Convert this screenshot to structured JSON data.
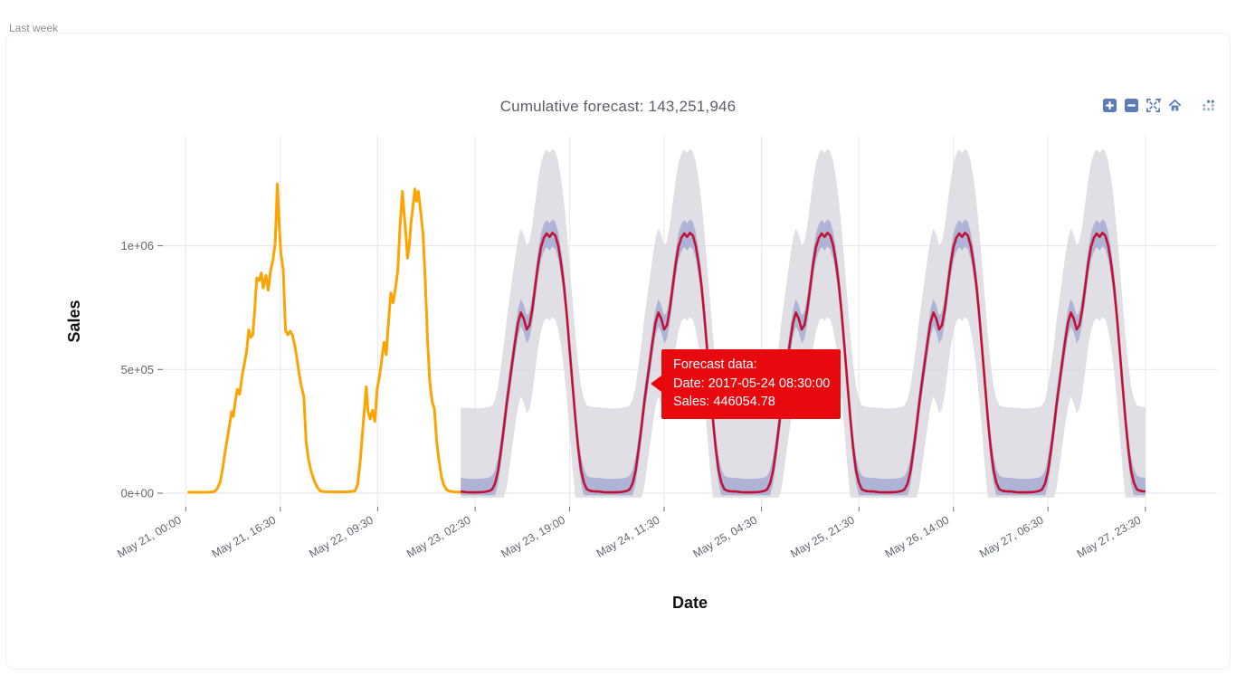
{
  "page": {
    "corner_label": "Last week"
  },
  "chart": {
    "title": "Cumulative forecast: 143,251,946",
    "modebar_icons": [
      "zoom-in",
      "zoom-out",
      "autoscale",
      "reset-home",
      "plotly-logo"
    ]
  },
  "chart_data": {
    "type": "line",
    "title": "Cumulative forecast: 143,251,946",
    "xlabel": "Date",
    "ylabel": "Sales",
    "xlim": [
      -4,
      180
    ],
    "ylim": [
      -55000,
      1445000
    ],
    "grid": true,
    "x_ticks": [
      {
        "label": "May 21, 00:00",
        "hour": 0
      },
      {
        "label": "May 21, 16:30",
        "hour": 16.5
      },
      {
        "label": "May 22, 09:30",
        "hour": 33.5
      },
      {
        "label": "May 23, 02:30",
        "hour": 50.5
      },
      {
        "label": "May 23, 19:00",
        "hour": 67
      },
      {
        "label": "May 24, 11:30",
        "hour": 83.5
      },
      {
        "label": "May 25, 04:30",
        "hour": 100.5
      },
      {
        "label": "May 25, 21:30",
        "hour": 117.5
      },
      {
        "label": "May 26, 14:00",
        "hour": 134
      },
      {
        "label": "May 27, 06:30",
        "hour": 150.5
      },
      {
        "label": "May 27, 23:30",
        "hour": 167.5
      }
    ],
    "y_ticks": [
      {
        "label": "0e+00",
        "value": 0
      },
      {
        "label": "5e+05",
        "value": 500000
      },
      {
        "label": "1e+06",
        "value": 1000000
      }
    ],
    "colors": {
      "observed": "#ffa300",
      "forecast": "#c11235",
      "band_wide": "#d9d9e1",
      "band_narrow": "#8f96c9",
      "grid": "#e9e9f0",
      "tick_text": "#5f6672",
      "axis_title": "#111111",
      "tooltip_bg": "#e8090f",
      "modebar": "#5d7cb6"
    },
    "series": [
      {
        "name": "observed",
        "color": "#ffa300",
        "points": [
          [
            0.5,
            4000
          ],
          [
            2,
            3500
          ],
          [
            4,
            4000
          ],
          [
            5,
            7000
          ],
          [
            5.5,
            18000
          ],
          [
            6,
            45000
          ],
          [
            6.5,
            110000
          ],
          [
            7,
            185000
          ],
          [
            7.5,
            255000
          ],
          [
            8,
            330000
          ],
          [
            8.3,
            310000
          ],
          [
            8.6,
            365000
          ],
          [
            9,
            420000
          ],
          [
            9.4,
            400000
          ],
          [
            9.8,
            470000
          ],
          [
            10.2,
            520000
          ],
          [
            10.6,
            570000
          ],
          [
            11,
            660000
          ],
          [
            11.3,
            630000
          ],
          [
            11.7,
            640000
          ],
          [
            12,
            730000
          ],
          [
            12.4,
            870000
          ],
          [
            12.8,
            860000
          ],
          [
            13.2,
            890000
          ],
          [
            13.5,
            830000
          ],
          [
            14,
            880000
          ],
          [
            14.4,
            820000
          ],
          [
            14.8,
            900000
          ],
          [
            15.2,
            940000
          ],
          [
            15.6,
            1010000
          ],
          [
            16,
            1250000
          ],
          [
            16.3,
            1090000
          ],
          [
            16.6,
            970000
          ],
          [
            17,
            905000
          ],
          [
            17.4,
            660000
          ],
          [
            17.8,
            640000
          ],
          [
            18.2,
            655000
          ],
          [
            18.6,
            640000
          ],
          [
            19,
            600000
          ],
          [
            19.4,
            545000
          ],
          [
            19.8,
            480000
          ],
          [
            20.2,
            430000
          ],
          [
            20.6,
            390000
          ],
          [
            21,
            210000
          ],
          [
            21.4,
            140000
          ],
          [
            21.8,
            95000
          ],
          [
            22.2,
            65000
          ],
          [
            22.6,
            40000
          ],
          [
            23,
            22000
          ],
          [
            23.5,
            9000
          ],
          [
            24,
            6000
          ],
          [
            26,
            5000
          ],
          [
            28,
            5500
          ],
          [
            29.5,
            8000
          ],
          [
            30,
            35000
          ],
          [
            30.5,
            140000
          ],
          [
            31,
            290000
          ],
          [
            31.5,
            430000
          ],
          [
            31.8,
            330000
          ],
          [
            32.2,
            300000
          ],
          [
            32.6,
            335000
          ],
          [
            33,
            290000
          ],
          [
            33.4,
            420000
          ],
          [
            33.8,
            470000
          ],
          [
            34.2,
            540000
          ],
          [
            34.6,
            610000
          ],
          [
            35,
            560000
          ],
          [
            35.4,
            700000
          ],
          [
            35.8,
            810000
          ],
          [
            36.2,
            770000
          ],
          [
            36.6,
            830000
          ],
          [
            37,
            900000
          ],
          [
            37.4,
            1080000
          ],
          [
            37.8,
            1220000
          ],
          [
            38.1,
            1130000
          ],
          [
            38.4,
            1050000
          ],
          [
            38.7,
            950000
          ],
          [
            39,
            1000000
          ],
          [
            39.3,
            1090000
          ],
          [
            39.6,
            1150000
          ],
          [
            40,
            1230000
          ],
          [
            40.3,
            1180000
          ],
          [
            40.6,
            1220000
          ],
          [
            41,
            1140000
          ],
          [
            41.4,
            1050000
          ],
          [
            41.8,
            860000
          ],
          [
            42.2,
            620000
          ],
          [
            42.6,
            450000
          ],
          [
            43,
            370000
          ],
          [
            43.4,
            340000
          ],
          [
            43.8,
            210000
          ],
          [
            44.2,
            130000
          ],
          [
            44.6,
            70000
          ],
          [
            45,
            35000
          ],
          [
            45.5,
            15000
          ],
          [
            46,
            8000
          ],
          [
            47,
            5000
          ],
          [
            48,
            4000
          ]
        ]
      },
      {
        "name": "forecast",
        "color": "#c11235",
        "start_hour": 48,
        "days": 5,
        "daily_pattern": [
          [
            0,
            7000
          ],
          [
            1,
            4000
          ],
          [
            2,
            3000
          ],
          [
            3,
            3000
          ],
          [
            4,
            4500
          ],
          [
            5,
            9000
          ],
          [
            5.5,
            16000
          ],
          [
            6,
            40000
          ],
          [
            6.5,
            90000
          ],
          [
            7,
            170000
          ],
          [
            7.5,
            260000
          ],
          [
            8,
            360000
          ],
          [
            8.5,
            446055
          ],
          [
            9,
            530000
          ],
          [
            9.5,
            615000
          ],
          [
            10,
            690000
          ],
          [
            10.5,
            730000
          ],
          [
            11,
            705000
          ],
          [
            11.5,
            662000
          ],
          [
            12,
            680000
          ],
          [
            12.5,
            745000
          ],
          [
            13,
            835000
          ],
          [
            13.5,
            925000
          ],
          [
            14,
            995000
          ],
          [
            14.5,
            1032000
          ],
          [
            15,
            1050000
          ],
          [
            15.5,
            1036000
          ],
          [
            16,
            1052000
          ],
          [
            16.5,
            1042000
          ],
          [
            17,
            1002000
          ],
          [
            17.5,
            932000
          ],
          [
            18,
            842000
          ],
          [
            18.5,
            722000
          ],
          [
            19,
            582000
          ],
          [
            19.5,
            442000
          ],
          [
            20,
            302000
          ],
          [
            20.5,
            182000
          ],
          [
            21,
            92000
          ],
          [
            21.5,
            42000
          ],
          [
            22,
            16000
          ],
          [
            22.5,
            10000
          ],
          [
            23,
            8000
          ],
          [
            23.5,
            7000
          ]
        ]
      }
    ],
    "bands": {
      "wide": {
        "color": "#d9d9e1",
        "opacity": 0.85,
        "offset": 340000,
        "floor": -18000
      },
      "narrow": {
        "color": "#8f96c9",
        "opacity": 0.6,
        "offset": 55000,
        "floor": -8000
      }
    },
    "annotation": {
      "lines": [
        "Forecast data:",
        "Date: 2017-05-24 08:30:00",
        "Sales: 446054.78"
      ],
      "point_hour": 80.5,
      "point_value": 446054.78,
      "color": "#e8090f"
    }
  }
}
